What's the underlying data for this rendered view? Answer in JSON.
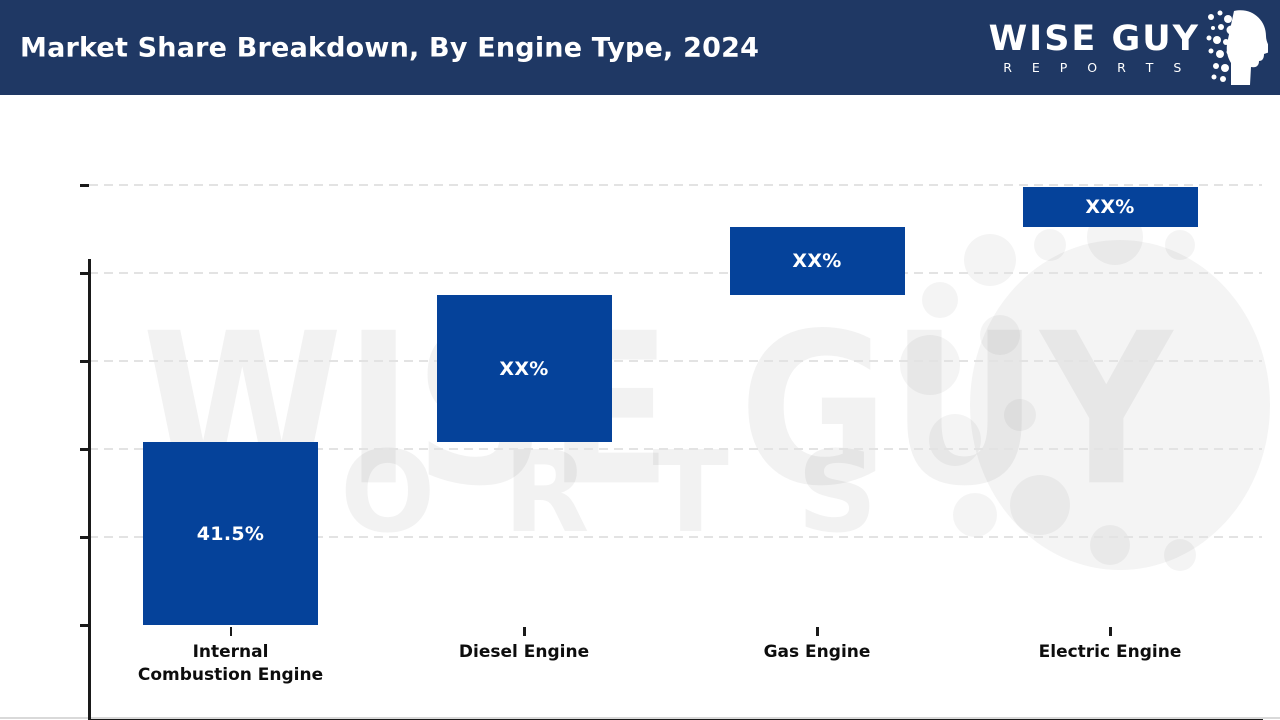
{
  "header": {
    "title": "Market Share Breakdown, By Engine Type, 2024",
    "bg_color": "#1F3864",
    "logo": {
      "wordmark": "WISE GUY",
      "subtext": "R E P O R T S"
    }
  },
  "watermark": {
    "line1": "WISE GUY",
    "line2": "PORTS"
  },
  "chart_data": {
    "type": "bar",
    "variant": "waterfall",
    "title": "Market Share Breakdown, By Engine Type, 2024",
    "categories": [
      "Internal\nCombustion Engine",
      "Diesel Engine",
      "Gas Engine",
      "Electric Engine"
    ],
    "segments": [
      {
        "category": "Internal Combustion Engine",
        "start": 0,
        "end": 41.5,
        "label": "41.5%"
      },
      {
        "category": "Diesel Engine",
        "start": 41.5,
        "end": 75,
        "label": "XX%"
      },
      {
        "category": "Gas Engine",
        "start": 75,
        "end": 90.5,
        "label": "XX%"
      },
      {
        "category": "Electric Engine",
        "start": 90.5,
        "end": 99.5,
        "label": "XX%"
      }
    ],
    "yticks": [
      0,
      20,
      40,
      60,
      80,
      100
    ],
    "ylim": [
      0,
      105
    ],
    "xlabel": "",
    "ylabel": "",
    "grid": {
      "horizontal": true,
      "style": "dashed",
      "color": "#e3e3e3"
    },
    "legend": "none",
    "bar_color": "#05429A",
    "bar_label_color": "#ffffff",
    "axis_color": "#1a1a1a"
  }
}
